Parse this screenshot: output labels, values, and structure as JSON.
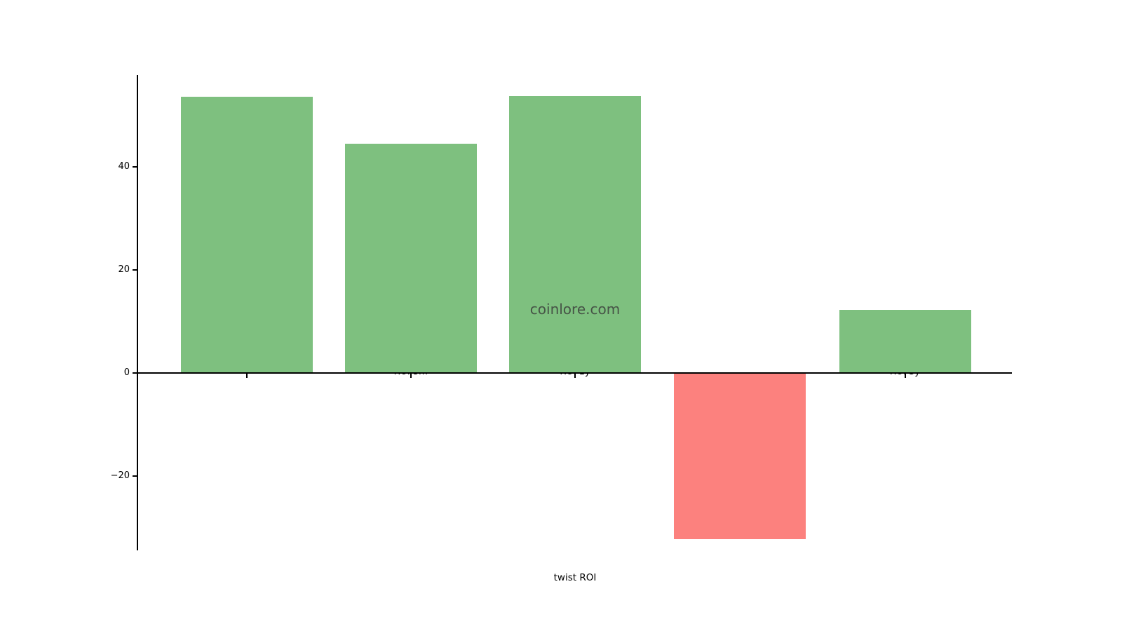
{
  "watermark": "coinlore.com",
  "chart_data": {
    "type": "bar",
    "title": "",
    "xlabel": "twist ROI",
    "ylabel": "",
    "categories": [
      "",
      "ROI 3m",
      "ROI 1y",
      "",
      "ROI 3y"
    ],
    "values": [
      53.6,
      44.5,
      53.8,
      -32.1,
      12.3
    ],
    "positive_color": "#7ec07f",
    "negative_color": "#fc817e",
    "ytick_values": [
      40,
      20,
      0,
      -20
    ],
    "ytick_labels": [
      "40",
      "20",
      "0",
      "−20"
    ],
    "ylim": [
      -34.4,
      57.8
    ],
    "grid": false,
    "legend_position": "none"
  }
}
